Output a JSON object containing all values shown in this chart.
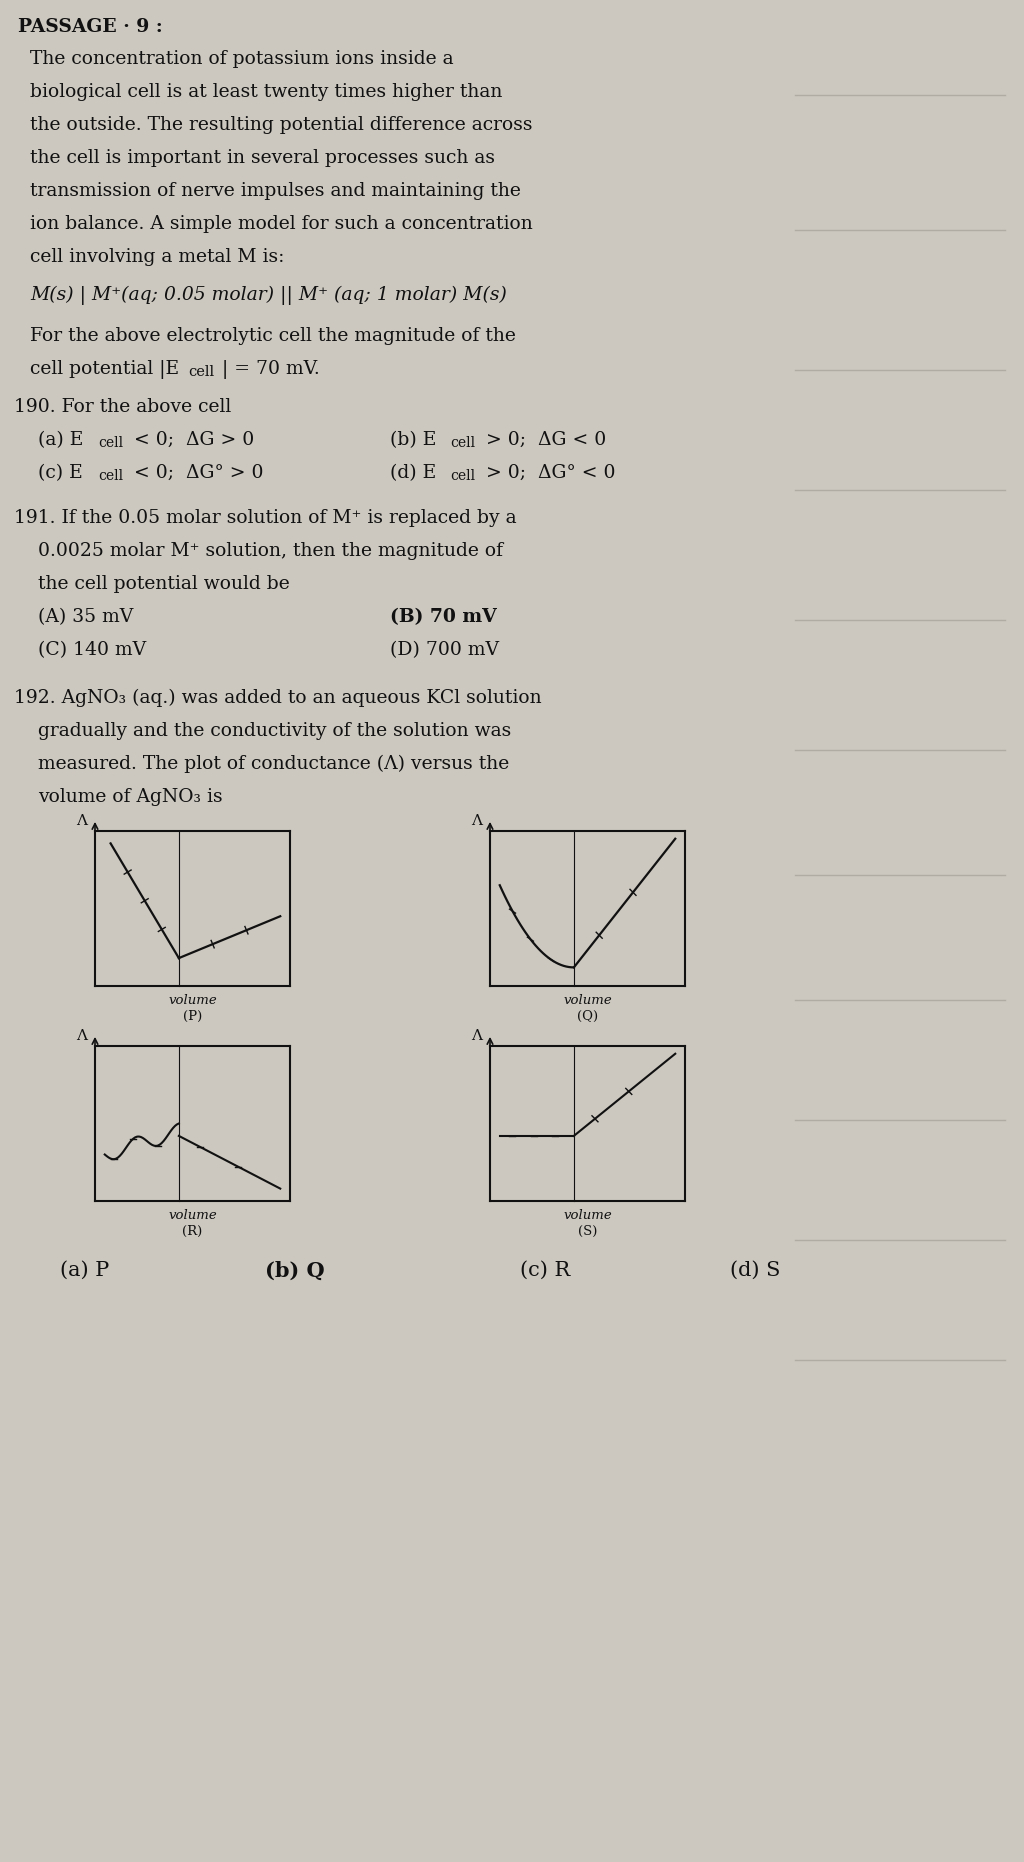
{
  "background_color": "#ccc8c0",
  "text_color": "#111111",
  "passage_header": "PASSAGE · 9 :",
  "passage_lines": [
    "The concentration of potassium ions inside a",
    "biological cell is at least twenty times higher than",
    "the outside. The resulting potential difference across",
    "the cell is important in several processes such as",
    "transmission of nerve impulses and maintaining the",
    "ion balance. A simple model for such a concentration",
    "cell involving a metal M is:"
  ],
  "cell_equation": "M(s) | M⁺(aq; 0.05 molar) || M⁺ (aq; 1 molar) M(s)",
  "for_text1": "For the above electrolytic cell the magnitude of the",
  "for_text2": "cell potential |E",
  "for_text2_sub": "cell",
  "for_text2_end": "| = 70 mV.",
  "q190": "190. For the above cell",
  "q191_lines": [
    "191. If the 0.05 molar solution of M⁺ is replaced by a",
    "0.0025 molar M⁺ solution, then the magnitude of",
    "the cell potential would be"
  ],
  "q192_lines": [
    "192. AgNO₃ (aq.) was added to an aqueous KCl solution",
    "gradually and the conductivity of the solution was",
    "measured. The plot of conductance (Λ) versus the",
    "volume of AgNO₃ is"
  ],
  "answer_row": [
    "(a) P",
    "(b) Q",
    "(c) R",
    "(d) S"
  ]
}
